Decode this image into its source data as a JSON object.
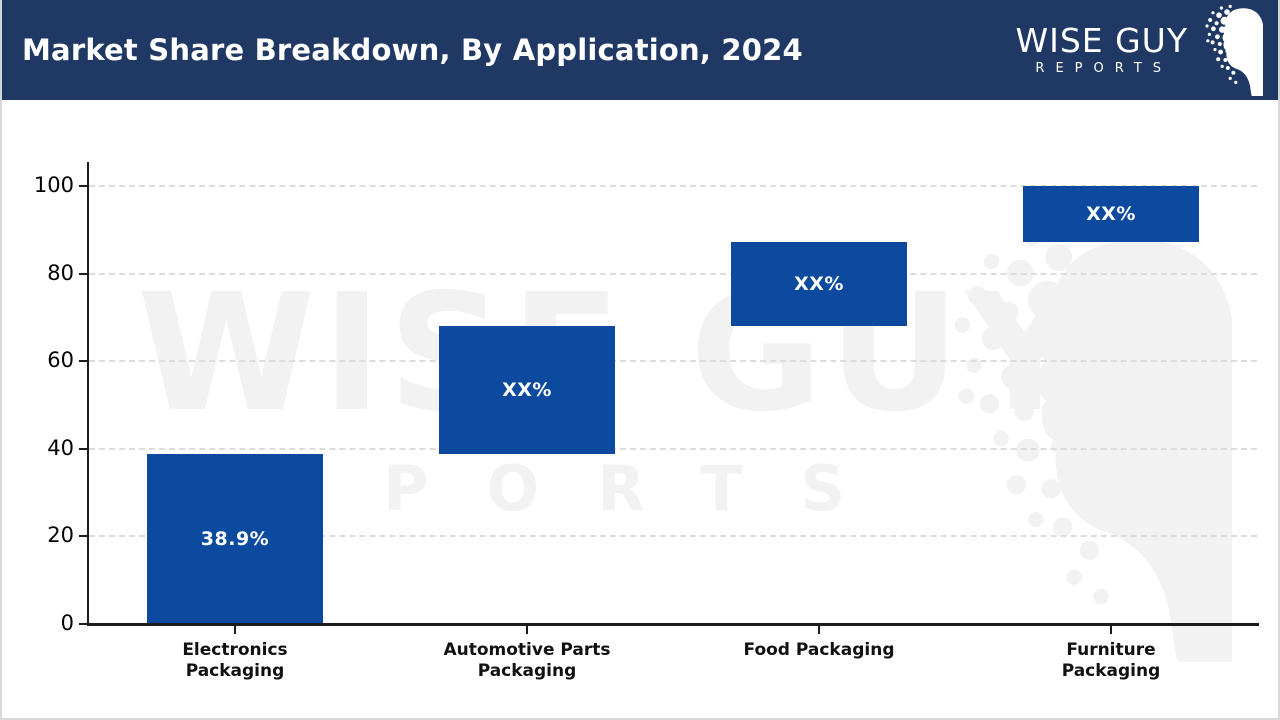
{
  "header": {
    "title": "Market Share Breakdown, By Application, 2024",
    "logo": {
      "name": "WISE GUY",
      "subtitle": "REPORTS"
    }
  },
  "watermark": {
    "line1": "WISE GUY",
    "line2": "REPORTS"
  },
  "chart_data": {
    "type": "bar",
    "subtype": "waterfall",
    "title": "Market Share Breakdown, By Application, 2024",
    "xlabel": "",
    "ylabel": "",
    "ylim": [
      0,
      105
    ],
    "y_ticks": [
      "0",
      "20",
      "40",
      "60",
      "80",
      "100"
    ],
    "y_tick_values": [
      0,
      20,
      40,
      60,
      80,
      100
    ],
    "grid": "horizontal dashed",
    "bar_color": "#0b4a9f",
    "value_label_color": "#ffffff",
    "categories": [
      {
        "name": "Electronics Packaging",
        "lines": [
          "Electronics",
          "Packaging"
        ]
      },
      {
        "name": "Automotive Parts Packaging",
        "lines": [
          "Automotive Parts",
          "Packaging"
        ]
      },
      {
        "name": "Food Packaging",
        "lines": [
          "Food Packaging"
        ]
      },
      {
        "name": "Furniture Packaging",
        "lines": [
          "Furniture",
          "Packaging"
        ]
      }
    ],
    "segments": [
      {
        "category": "Electronics Packaging",
        "start": 0,
        "end": 38.9,
        "label": "38.9%"
      },
      {
        "category": "Automotive Parts Packaging",
        "start": 38.9,
        "end": 68.0,
        "label": "XX%"
      },
      {
        "category": "Food Packaging",
        "start": 68.0,
        "end": 87.3,
        "label": "XX%"
      },
      {
        "category": "Furniture Packaging",
        "start": 87.3,
        "end": 100.0,
        "label": "XX%"
      }
    ]
  },
  "colors": {
    "header_bg": "#1f3864",
    "bar": "#0b4a9f",
    "axis": "#1c1c1c",
    "grid": "#dcdcdc",
    "watermark": "#f2f2f2"
  }
}
